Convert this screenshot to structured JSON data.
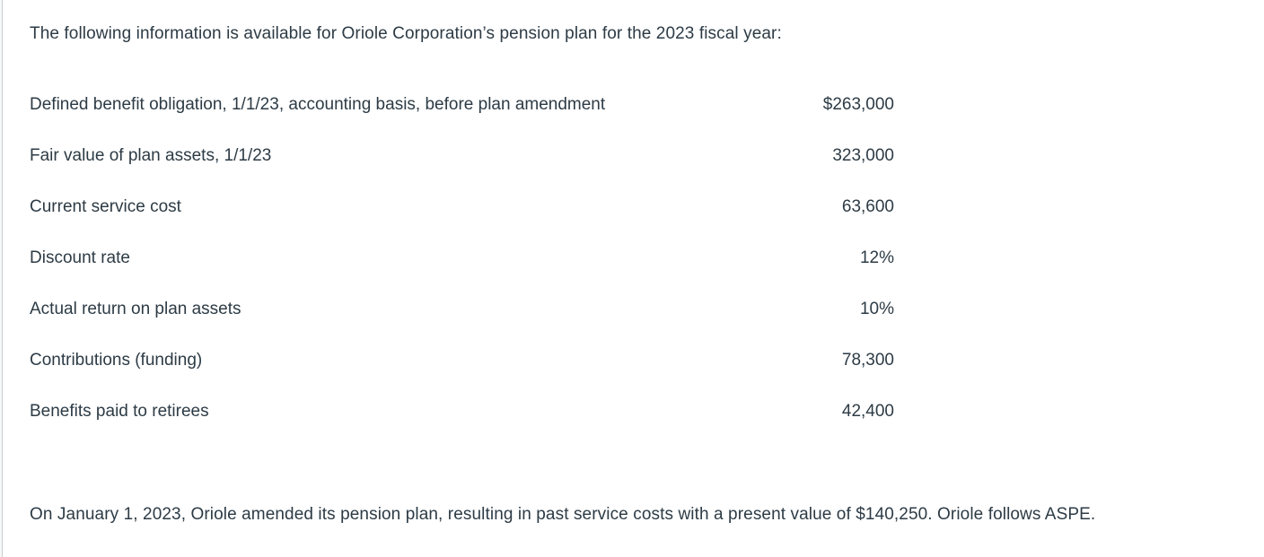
{
  "page": {
    "intro": "The following information is available for Oriole Corporation’s pension plan for the 2023 fiscal year:",
    "table": {
      "rows": [
        {
          "label": "Defined benefit obligation, 1/1/23, accounting basis, before plan amendment",
          "value": "$263,000"
        },
        {
          "label": "Fair value of plan assets, 1/1/23",
          "value": "323,000"
        },
        {
          "label": "Current service cost",
          "value": "63,600"
        },
        {
          "label": "Discount rate",
          "value": "12%"
        },
        {
          "label": "Actual return on plan assets",
          "value": "10%"
        },
        {
          "label": "Contributions (funding)",
          "value": "78,300"
        },
        {
          "label": "Benefits paid to retirees",
          "value": "42,400"
        }
      ]
    },
    "footer": "On January 1, 2023, Oriole amended its pension plan, resulting in past service costs with a present value of $140,250. Oriole follows ASPE."
  },
  "colors": {
    "text": "#2D3B45",
    "edge_line": "#C7CDD1",
    "edge_bg": "#F7F7F7",
    "background": "#FFFFFF"
  }
}
